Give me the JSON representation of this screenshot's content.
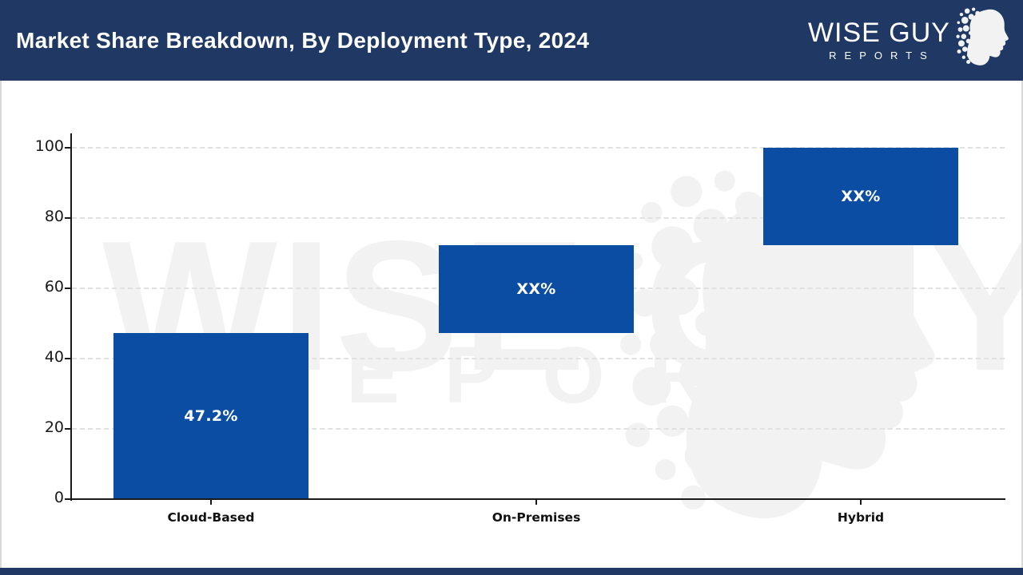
{
  "header": {
    "title": "Market Share Breakdown, By Deployment Type, 2024",
    "logo": {
      "line1": "WISE GUY",
      "line2": "REPORTS"
    }
  },
  "watermark": {
    "line1": "WISE GUY",
    "line2": "REPORTS"
  },
  "chart_data": {
    "type": "bar",
    "subtype": "waterfall-segments",
    "title": "Market Share Breakdown, By Deployment Type, 2024",
    "categories": [
      "Cloud-Based",
      "On-Premises",
      "Hybrid"
    ],
    "segments": [
      {
        "category": "Cloud-Based",
        "start": 0,
        "end": 47.2,
        "label": "47.2%"
      },
      {
        "category": "On-Premises",
        "start": 47.2,
        "end": 72.2,
        "label": "XX%"
      },
      {
        "category": "Hybrid",
        "start": 72.2,
        "end": 100,
        "label": "XX%"
      }
    ],
    "xlabel": "",
    "ylabel": "",
    "ylim": [
      0,
      100
    ],
    "yticks": [
      0,
      20,
      40,
      60,
      80,
      100
    ],
    "grid": "horizontal-dashed",
    "legend": "none",
    "bar_color": "#0B4DA2",
    "label_color": "#FFFFFF"
  },
  "colors": {
    "header_bg": "#1F3864",
    "footer_bg": "#1F3864",
    "bar": "#0B4DA2",
    "grid_color": "#E1E1E1",
    "axis_color": "#1A1A1A",
    "watermark_color": "#F2F2F2",
    "border_color": "#D9D9D9",
    "text_on_dark": "#FFFFFF"
  }
}
